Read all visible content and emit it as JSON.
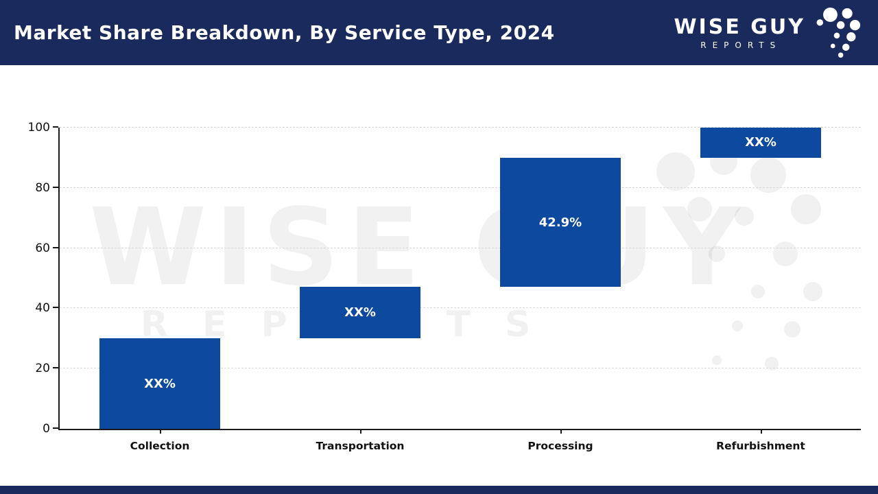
{
  "colors": {
    "navy": "#1a2a5c",
    "bar_blue": "#0d4a9f",
    "grid": "#d9d9d9",
    "axis": "#1a1a1a",
    "watermark_gray": "#000000"
  },
  "header": {
    "title": "Market Share Breakdown, By Service Type, 2024",
    "logo": {
      "line1": "WISE GUY",
      "line2": "REPORTS"
    }
  },
  "watermark": {
    "big": "WISE GUY",
    "sub": "REPORTS"
  },
  "chart_data": {
    "type": "bar",
    "subtype": "waterfall",
    "title": "Market Share Breakdown, By Service Type, 2024",
    "categories": [
      "Collection",
      "Transportation",
      "Processing",
      "Refurbishment"
    ],
    "segments": [
      {
        "category": "Collection",
        "start": 0,
        "end": 30,
        "label": "XX%"
      },
      {
        "category": "Transportation",
        "start": 30,
        "end": 47.1,
        "label": "XX%"
      },
      {
        "category": "Processing",
        "start": 47.1,
        "end": 90,
        "label": "42.9%"
      },
      {
        "category": "Refurbishment",
        "start": 90,
        "end": 100,
        "label": "XX%"
      }
    ],
    "ylim": [
      0,
      100
    ],
    "yticks": [
      0,
      20,
      40,
      60,
      80,
      100
    ],
    "xlabel": "",
    "ylabel": "",
    "legend": "none",
    "grid": "horizontal-dashed",
    "bar_color": "#0d4a9f",
    "bar_label_color": "#ffffff"
  }
}
